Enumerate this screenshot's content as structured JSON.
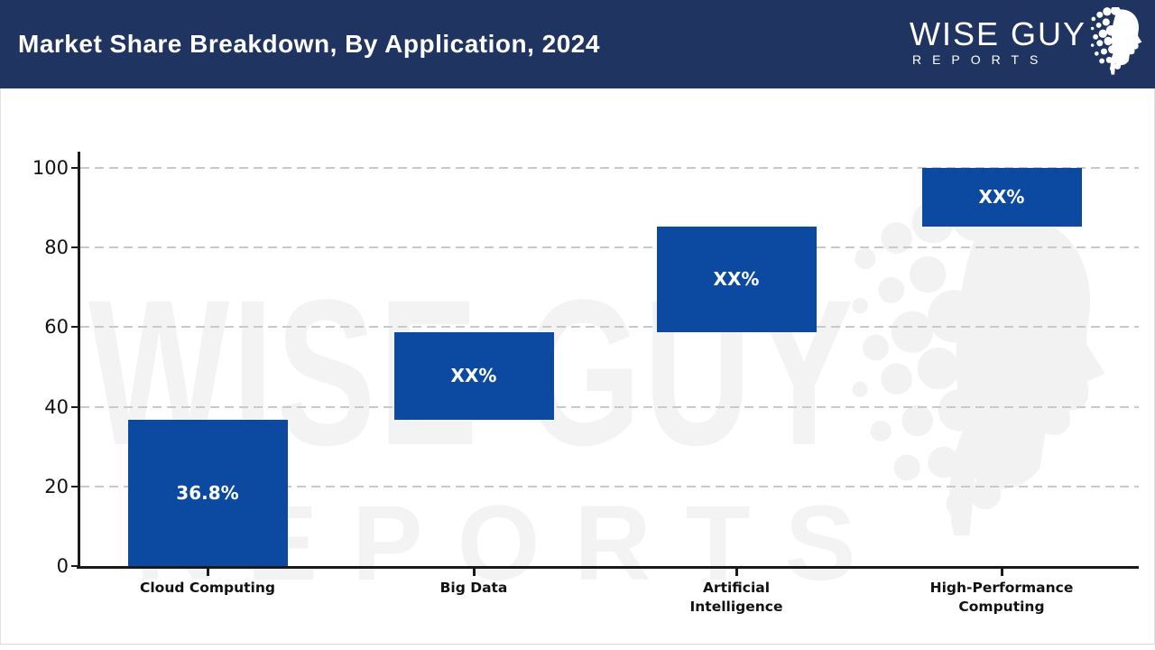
{
  "header": {
    "title": "Market Share Breakdown, By Application, 2024",
    "background_color": "#1f3461",
    "logo": {
      "line1": "WISE GUY",
      "line2": "REPORTS",
      "face_icon": "dotted-face-profile-icon"
    }
  },
  "watermark": {
    "line1": "WISE GUY",
    "line2": "REPORTS",
    "face_icon": "dotted-face-profile-icon",
    "color": "#f3f3f3"
  },
  "chart_data": {
    "type": "bar",
    "variant": "waterfall",
    "title": "Market Share Breakdown, By Application, 2024",
    "categories": [
      "Cloud Computing",
      "Big Data",
      "Artificial Intelligence",
      "High-Performance Computing"
    ],
    "category_label_lines": [
      [
        "Cloud Computing"
      ],
      [
        "Big Data"
      ],
      [
        "Artificial",
        "Intelligence"
      ],
      [
        "High-Performance",
        "Computing"
      ]
    ],
    "segments": [
      {
        "category": "Cloud Computing",
        "start": 0,
        "end": 36.8,
        "value": 36.8,
        "label": "36.8%"
      },
      {
        "category": "Big Data",
        "start": 36.8,
        "end": 58.7,
        "value": 21.9,
        "label": "XX%"
      },
      {
        "category": "Artificial Intelligence",
        "start": 58.7,
        "end": 85.3,
        "value": 26.6,
        "label": "XX%"
      },
      {
        "category": "High-Performance Computing",
        "start": 85.3,
        "end": 100,
        "value": 14.7,
        "label": "XX%"
      }
    ],
    "xlabel": "",
    "ylabel": "",
    "ylim": [
      0,
      100
    ],
    "yticks": [
      0,
      20,
      40,
      60,
      80,
      100
    ],
    "grid": {
      "horizontal": true,
      "style": "dashed",
      "at": [
        20,
        40,
        60,
        80,
        100
      ],
      "color": "#c9c9c9"
    },
    "legend": "none",
    "bar_color": "#0c4aa2",
    "bar_label_color": "#ffffff",
    "axis_color": "#1a1a1a",
    "tick_label_color": "#111111"
  },
  "colors": {
    "header_navy": "#1f3461",
    "bar_blue": "#0c4aa2",
    "watermark_gray": "#f3f3f3",
    "grid_gray": "#c9c9c9",
    "text_dark": "#111111",
    "white": "#ffffff"
  }
}
